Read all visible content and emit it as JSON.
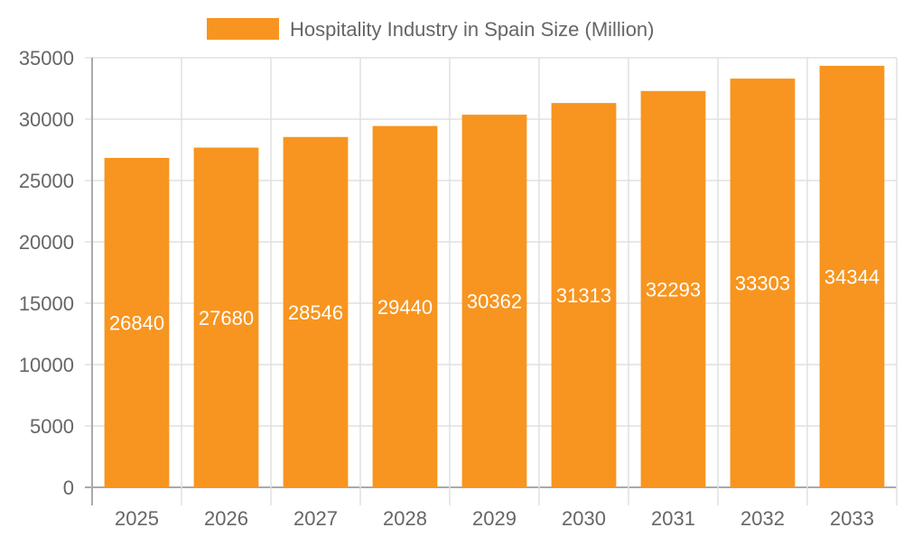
{
  "chart_data": {
    "type": "bar",
    "title": "",
    "xlabel": "",
    "ylabel": "",
    "categories": [
      "2025",
      "2026",
      "2027",
      "2028",
      "2029",
      "2030",
      "2031",
      "2032",
      "2033"
    ],
    "series": [
      {
        "name": "Hospitality Industry in Spain Size (Million)",
        "values": [
          26840,
          27680,
          28546,
          29440,
          30362,
          31313,
          32293,
          33303,
          34344
        ],
        "color": "#f79520"
      }
    ],
    "ylim": [
      0,
      35000
    ],
    "yticks": [
      0,
      5000,
      10000,
      15000,
      20000,
      25000,
      30000,
      35000
    ],
    "grid": true,
    "legend": "top-center",
    "data_labels": true,
    "colors": {
      "bar": "#f79520",
      "grid": "#e0e0e0",
      "axis": "#aaaaaa",
      "text": "#666666",
      "data_label": "#ffffff"
    }
  }
}
